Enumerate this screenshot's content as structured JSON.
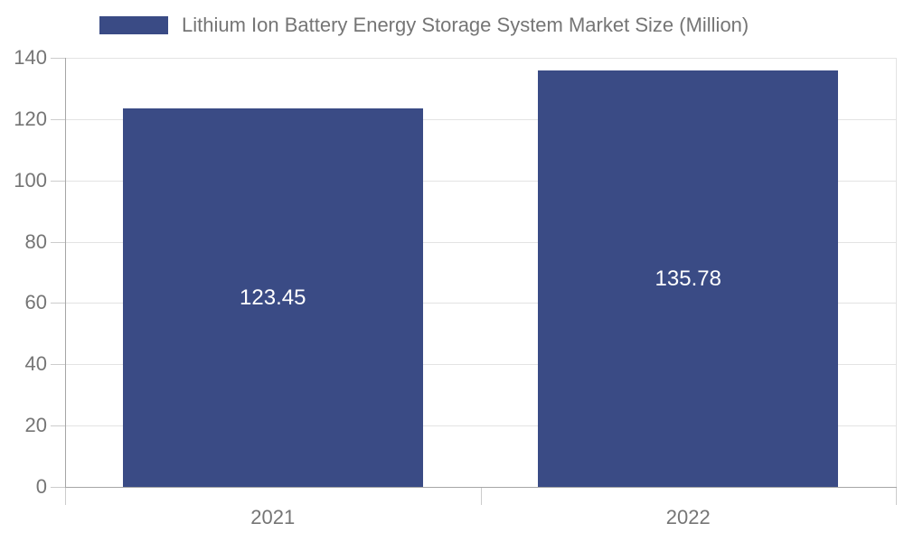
{
  "chart_data": {
    "type": "bar",
    "title": "Lithium Ion Battery Energy Storage System Market Size (Million)",
    "categories": [
      "2021",
      "2022"
    ],
    "values": [
      123.45,
      135.78
    ],
    "value_labels": [
      "123.45",
      "135.78"
    ],
    "series": [
      {
        "name": "Lithium Ion Battery Energy Storage System Market Size (Million)",
        "values": [
          123.45,
          135.78
        ]
      }
    ],
    "xlabel": "",
    "ylabel": "",
    "ylim": [
      0,
      140
    ],
    "yticks": [
      0,
      20,
      40,
      60,
      80,
      100,
      120,
      140
    ],
    "grid": true,
    "legend_position": "top-left",
    "data_label_position": "inside-center"
  },
  "legend": {
    "items": [
      {
        "label": "Lithium Ion Battery Energy Storage System Market Size (Million)",
        "color": "#3A4B85"
      }
    ]
  },
  "colors": {
    "bar": "#3A4B85",
    "data_label": "#FFFFFF",
    "axis_line": "#A6A6A6",
    "tick_line": "#CCCCCC",
    "grid_line": "#E3E3E3",
    "right_border": "#E3E3E3",
    "axis_text": "#757575",
    "background": "#FFFFFF"
  }
}
